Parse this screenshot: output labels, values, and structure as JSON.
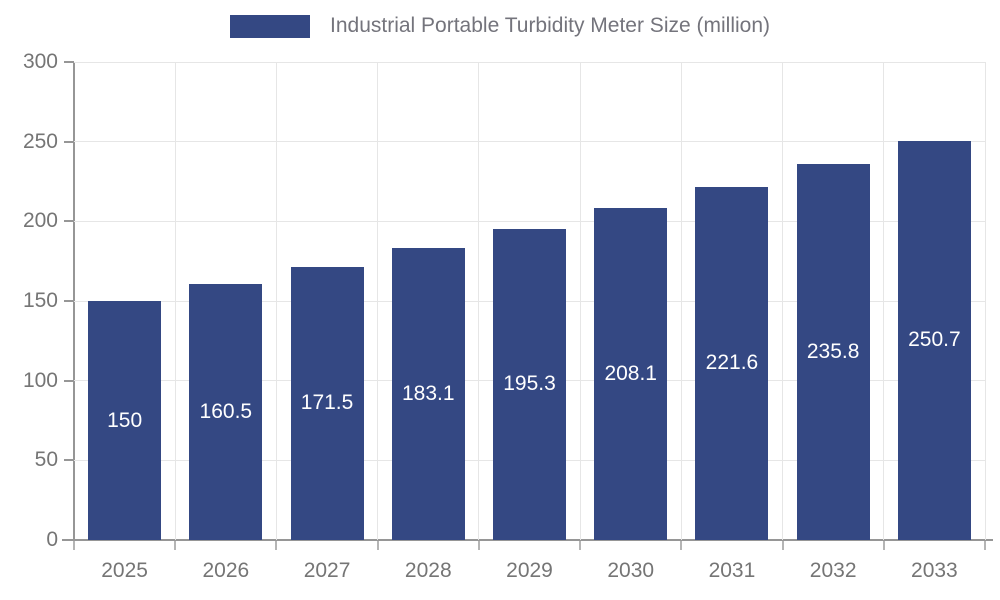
{
  "legend": {
    "label": "Industrial Portable Turbidity Meter Size (million)"
  },
  "chart_data": {
    "type": "bar",
    "title": "",
    "xlabel": "",
    "ylabel": "",
    "categories": [
      "2025",
      "2026",
      "2027",
      "2028",
      "2029",
      "2030",
      "2031",
      "2032",
      "2033"
    ],
    "series": [
      {
        "name": "Industrial Portable Turbidity Meter Size (million)",
        "values": [
          150,
          160.5,
          171.5,
          183.1,
          195.3,
          208.1,
          221.6,
          235.8,
          250.7
        ]
      }
    ],
    "value_labels": [
      "150",
      "160.5",
      "171.5",
      "183.1",
      "195.3",
      "208.1",
      "221.6",
      "235.8",
      "250.7"
    ],
    "ylim": [
      0,
      300
    ],
    "ytick_step": 50,
    "ytick_labels": [
      "0",
      "50",
      "100",
      "150",
      "200",
      "250",
      "300"
    ],
    "grid": true,
    "legend_position": "top",
    "colors": {
      "bar": "#344883",
      "value_label": "#ffffff",
      "axis": "#969696",
      "grid": "#e6e6e6",
      "tick_label": "#757575",
      "legend_text": "#74747c",
      "background": "#ffffff"
    }
  }
}
